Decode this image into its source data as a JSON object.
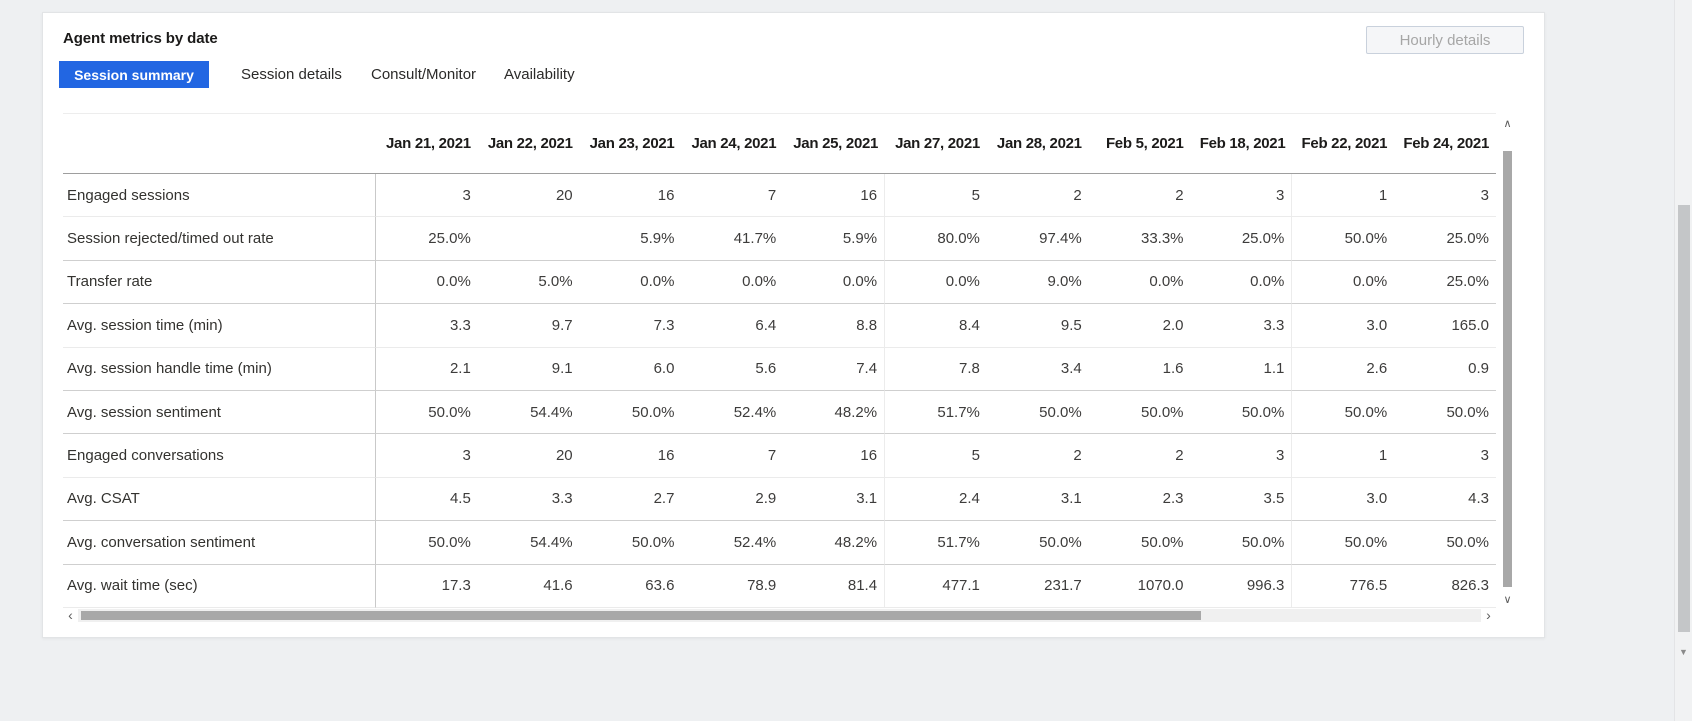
{
  "panel": {
    "title": "Agent metrics by date",
    "accent_color": "#2266e2",
    "button": {
      "label": "Hourly details",
      "disabled": true
    },
    "tabs": [
      {
        "label": "Session summary",
        "active": true
      },
      {
        "label": "Session details",
        "active": false
      },
      {
        "label": "Consult/Monitor",
        "active": false
      },
      {
        "label": "Availability",
        "active": false
      }
    ]
  },
  "table": {
    "columns": [
      "Jan 21, 2021",
      "Jan 22, 2021",
      "Jan 23, 2021",
      "Jan 24, 2021",
      "Jan 25, 2021",
      "Jan 27, 2021",
      "Jan 28, 2021",
      "Feb 5, 2021",
      "Feb 18, 2021",
      "Feb 22, 2021",
      "Feb 24, 2021"
    ],
    "rows": [
      {
        "label": "Engaged sessions",
        "values": [
          "3",
          "20",
          "16",
          "7",
          "16",
          "5",
          "2",
          "2",
          "3",
          "1",
          "3"
        ],
        "group_end": false
      },
      {
        "label": "Session rejected/timed out rate",
        "values": [
          "25.0%",
          "",
          "5.9%",
          "41.7%",
          "5.9%",
          "80.0%",
          "97.4%",
          "33.3%",
          "25.0%",
          "50.0%",
          "25.0%"
        ],
        "group_end": true
      },
      {
        "label": "Transfer rate",
        "values": [
          "0.0%",
          "5.0%",
          "0.0%",
          "0.0%",
          "0.0%",
          "0.0%",
          "9.0%",
          "0.0%",
          "0.0%",
          "0.0%",
          "25.0%"
        ],
        "group_end": true
      },
      {
        "label": "Avg. session time (min)",
        "values": [
          "3.3",
          "9.7",
          "7.3",
          "6.4",
          "8.8",
          "8.4",
          "9.5",
          "2.0",
          "3.3",
          "3.0",
          "165.0"
        ],
        "group_end": false
      },
      {
        "label": "Avg. session handle time (min)",
        "values": [
          "2.1",
          "9.1",
          "6.0",
          "5.6",
          "7.4",
          "7.8",
          "3.4",
          "1.6",
          "1.1",
          "2.6",
          "0.9"
        ],
        "group_end": true
      },
      {
        "label": "Avg. session sentiment",
        "values": [
          "50.0%",
          "54.4%",
          "50.0%",
          "52.4%",
          "48.2%",
          "51.7%",
          "50.0%",
          "50.0%",
          "50.0%",
          "50.0%",
          "50.0%"
        ],
        "group_end": true
      },
      {
        "label": "Engaged conversations",
        "values": [
          "3",
          "20",
          "16",
          "7",
          "16",
          "5",
          "2",
          "2",
          "3",
          "1",
          "3"
        ],
        "group_end": false
      },
      {
        "label": "Avg. CSAT",
        "values": [
          "4.5",
          "3.3",
          "2.7",
          "2.9",
          "3.1",
          "2.4",
          "3.1",
          "2.3",
          "3.5",
          "3.0",
          "4.3"
        ],
        "group_end": true
      },
      {
        "label": "Avg. conversation sentiment",
        "values": [
          "50.0%",
          "54.4%",
          "50.0%",
          "52.4%",
          "48.2%",
          "51.7%",
          "50.0%",
          "50.0%",
          "50.0%",
          "50.0%",
          "50.0%"
        ],
        "group_end": true
      },
      {
        "label": "Avg. wait time (sec)",
        "values": [
          "17.3",
          "41.6",
          "63.6",
          "78.9",
          "81.4",
          "477.1",
          "231.7",
          "1070.0",
          "996.3",
          "776.5",
          "826.3"
        ],
        "group_end": false
      }
    ]
  },
  "scrollbars": {
    "table_vertical": {
      "up_icon": "∧",
      "down_icon": "∨"
    },
    "table_horizontal": {
      "left_icon": "‹",
      "right_icon": "›"
    },
    "page_vertical": {
      "down_icon": "▼"
    }
  }
}
